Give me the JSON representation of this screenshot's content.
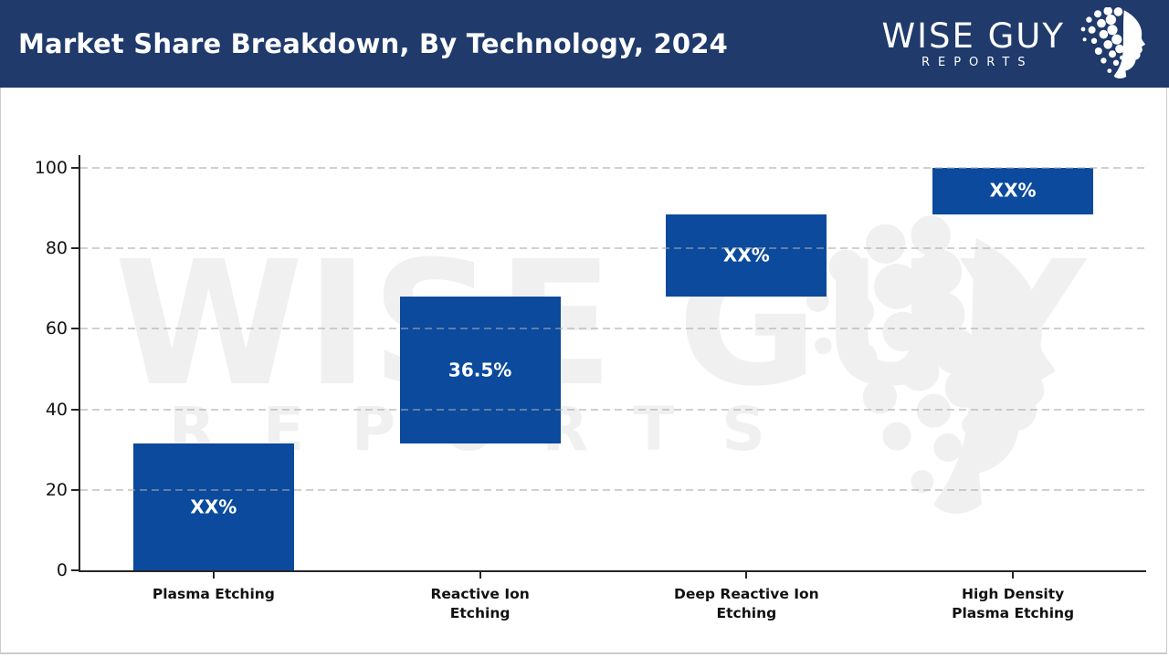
{
  "header": {
    "title": "Market Share Breakdown, By Technology, 2024",
    "background_color": "#1f3a6b",
    "logo": {
      "line1": "WISE GUY",
      "line2": "REPORTS"
    }
  },
  "watermark": {
    "line1": "WISE GUY",
    "line2": "REPORTS",
    "color": "#f0f0f0"
  },
  "frame": {
    "border_color": "#cccccc"
  },
  "chart_data": {
    "type": "bar",
    "subtype": "waterfall",
    "title": "Market Share Breakdown, By Technology, 2024",
    "categories": [
      "Plasma Etching",
      "Reactive Ion Etching",
      "Deep Reactive Ion Etching",
      "High Density Plasma Etching"
    ],
    "category_lines": [
      [
        "Plasma Etching"
      ],
      [
        "Reactive Ion",
        "Etching"
      ],
      [
        "Deep Reactive Ion",
        "Etching"
      ],
      [
        "High Density",
        "Plasma Etching"
      ]
    ],
    "segments": [
      {
        "category": "Plasma Etching",
        "start": 0,
        "end": 31.5,
        "label": "XX%"
      },
      {
        "category": "Reactive Ion Etching",
        "start": 31.5,
        "end": 68,
        "label": "36.5%"
      },
      {
        "category": "Deep Reactive Ion Etching",
        "start": 68,
        "end": 88.5,
        "label": "XX%"
      },
      {
        "category": "High Density Plasma Etching",
        "start": 88.5,
        "end": 100,
        "label": "XX%"
      }
    ],
    "values_pct": [
      31.5,
      36.5,
      20.5,
      11.5
    ],
    "yticks": [
      0,
      20,
      40,
      60,
      80,
      100
    ],
    "ylim": [
      0,
      104
    ],
    "xlabel": "",
    "ylabel": "",
    "legend": null,
    "grid": "horizontal-dashed",
    "bar_color": "#0b4a9c",
    "bar_label_color": "#ffffff",
    "axis_color": "#262626"
  }
}
